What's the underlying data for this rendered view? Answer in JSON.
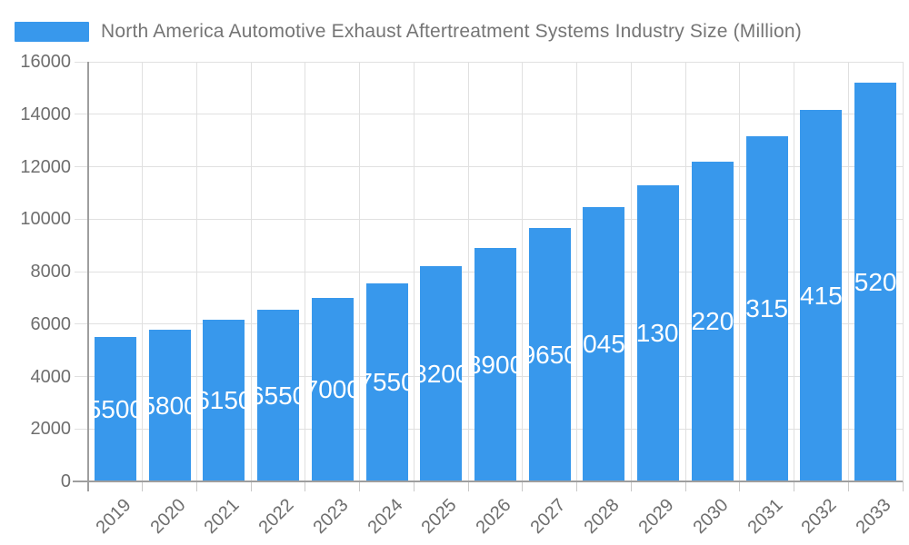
{
  "legend": {
    "series_label": "North America Automotive Exhaust Aftertreatment Systems Industry Size (Million)"
  },
  "chart_data": {
    "type": "bar",
    "title": "North America Automotive Exhaust Aftertreatment Systems Industry Size (Million)",
    "categories": [
      "2019",
      "2020",
      "2021",
      "2022",
      "2023",
      "2024",
      "2025",
      "2026",
      "2027",
      "2028",
      "2029",
      "2030",
      "2031",
      "2032",
      "2033"
    ],
    "values": [
      5500,
      5800,
      6150,
      6550,
      7000,
      7550,
      8200,
      8900,
      9650,
      10450,
      11300,
      12200,
      13150,
      14150,
      15200
    ],
    "xlabel": "",
    "ylabel": "",
    "ylim": [
      0,
      16000
    ],
    "ytick_step": 2000,
    "ytick_labels": [
      "0",
      "2000",
      "4000",
      "6000",
      "8000",
      "10000",
      "12000",
      "14000",
      "16000"
    ],
    "grid": true,
    "legend_position": "top-left",
    "value_labels": "inside-center-white",
    "colors": {
      "bar": "#3898EC",
      "value_label": "#FFFFFF",
      "grid": "#E0E0E0",
      "tick": "#C8C8C8",
      "axis_line": "#9E9E9E",
      "axis_text": "#6E6E6E",
      "title_text": "#757575",
      "background": "#FFFFFF"
    }
  }
}
